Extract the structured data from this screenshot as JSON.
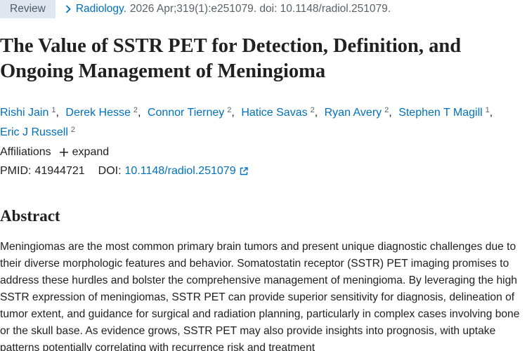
{
  "citation": {
    "tag": "Review",
    "journal": "Radiology.",
    "details": "2026 Apr;319(1):e251079. doi: 10.1148/radiol.251079."
  },
  "title": "The Value of SSTR PET for Detection, Definition, and Ongoing Management of Meningioma",
  "authors": [
    {
      "name": "Rishi Jain",
      "affiliation": 1
    },
    {
      "name": "Derek Hesse",
      "affiliation": 2
    },
    {
      "name": "Connor Tierney",
      "affiliation": 2
    },
    {
      "name": "Hatice Savas",
      "affiliation": 2
    },
    {
      "name": "Ryan Avery",
      "affiliation": 2
    },
    {
      "name": "Stephen T Magill",
      "affiliation": 1
    },
    {
      "name": "Eric J Russell",
      "affiliation": 2
    }
  ],
  "affiliations": {
    "label": "Affiliations",
    "toggle": "expand"
  },
  "identifiers": {
    "pmid_label": "PMID:",
    "pmid": "41944721",
    "doi_label": "DOI:",
    "doi": "10.1148/radiol.251079"
  },
  "abstract": {
    "heading": "Abstract",
    "text": "Meningiomas are the most common primary brain tumors and present unique diagnostic challenges due to their diverse morphologic features and behavior. Somatostatin receptor (SSTR) PET imaging promises to address these hurdles and bolster the comprehensive management of meningioma. By leveraging the high SSTR expression of meningiomas, SSTR PET can provide superior sensitivity for diagnosis, delineation of tumor extent, and guidance for surgical and radiation planning, particularly in complex cases involving bone or the skull base. As evidence grows, SSTR PET may also provide insights into prognosis, with uptake patterns potentially correlating with recurrence risk and treatment"
  }
}
